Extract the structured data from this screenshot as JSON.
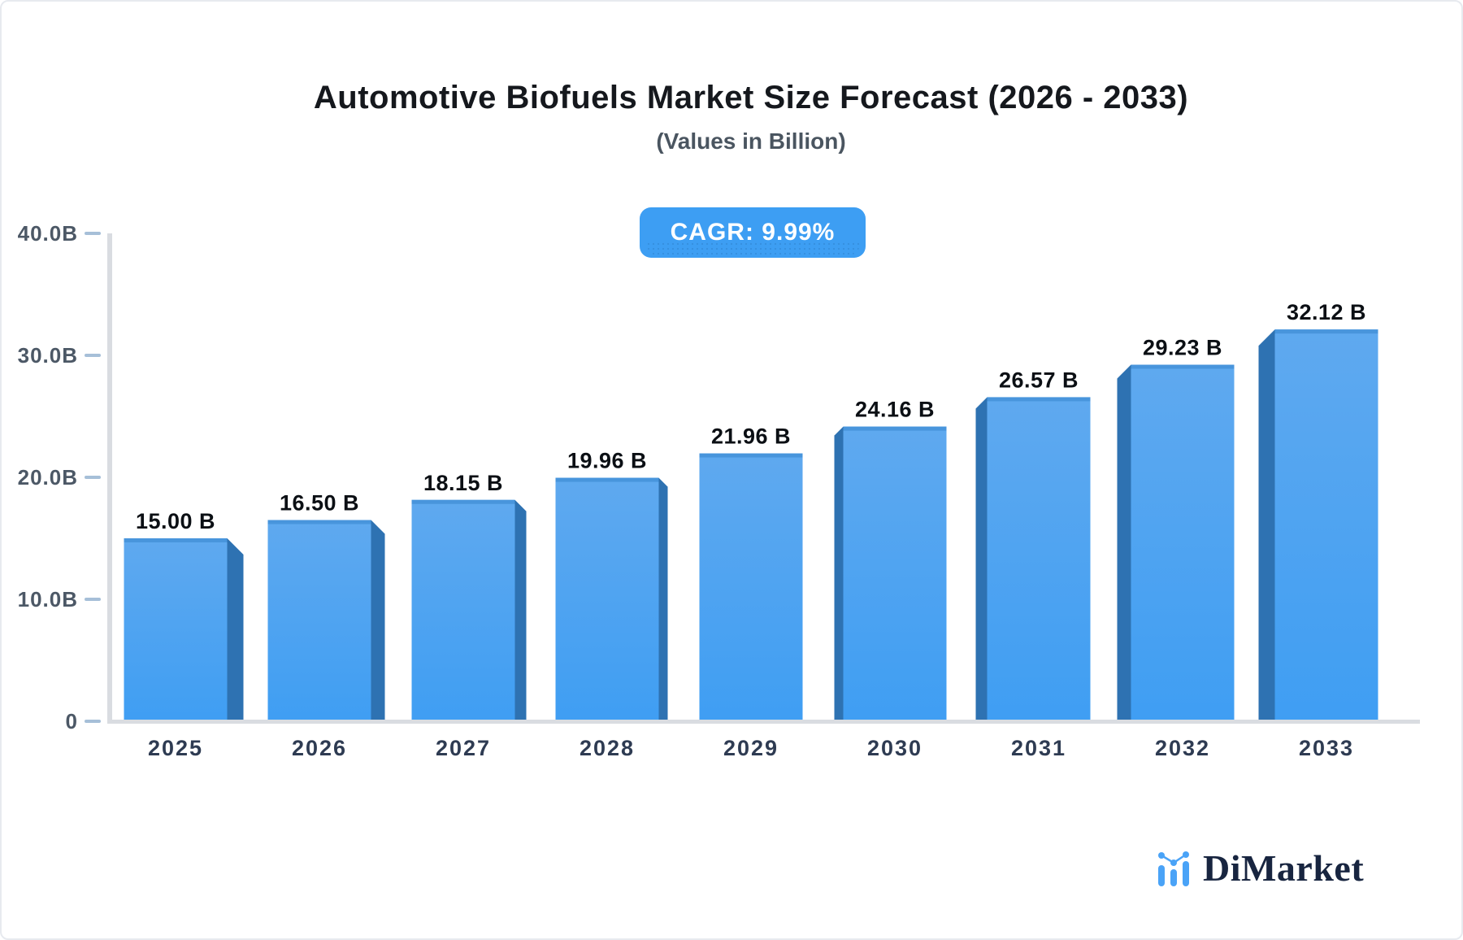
{
  "title": "Automotive Biofuels Market Size Forecast (2026 - 2033)",
  "subtitle": "(Values in Billion)",
  "badge": {
    "label": "CAGR: 9.99%",
    "bg": "#3D9EF3",
    "text_color": "#FFFFFF"
  },
  "logo": {
    "name": "DiMarket",
    "icon": "bar-chart-logo-icon",
    "icon_color": "#4AA3F7",
    "text_color": "#182540"
  },
  "chart_data": {
    "type": "bar",
    "title": "Automotive Biofuels Market Size Forecast (2026 - 2033)",
    "subtitle": "(Values in Billion)",
    "categories": [
      "2025",
      "2026",
      "2027",
      "2028",
      "2029",
      "2030",
      "2031",
      "2032",
      "2033"
    ],
    "values": [
      15.0,
      16.5,
      18.15,
      19.96,
      21.96,
      24.16,
      26.57,
      29.23,
      32.12
    ],
    "value_labels": [
      "15.00 B",
      "16.50 B",
      "18.15 B",
      "19.96 B",
      "21.96 B",
      "24.16 B",
      "26.57 B",
      "29.23 B",
      "32.12 B"
    ],
    "unit": "Billion",
    "xlabel": "",
    "ylabel": "",
    "ylim": [
      0,
      40
    ],
    "yticks": [
      {
        "value": 0,
        "label": "0"
      },
      {
        "value": 10,
        "label": "10.0B"
      },
      {
        "value": 20,
        "label": "20.0B"
      },
      {
        "value": 30,
        "label": "30.0B"
      },
      {
        "value": 40,
        "label": "40.0B"
      }
    ],
    "grid": false,
    "legend": null,
    "cagr": "9.99%",
    "colors": {
      "face_top": "#5FA9EF",
      "face_bottom": "#3F9EF3",
      "side": "#2E72B2",
      "top_edge": "#4895DC",
      "axis": "#D9DCE1",
      "tick": "#A6BFD8",
      "ytick_label": "#4C5866",
      "xtick_label": "#2E3B52",
      "value_label": "#0B0F14"
    }
  }
}
